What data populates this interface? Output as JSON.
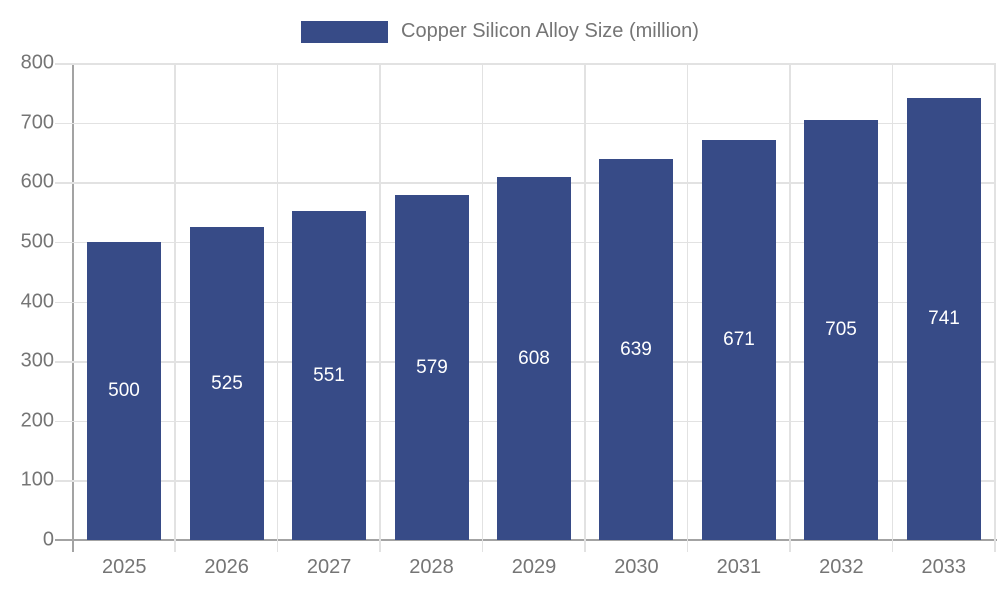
{
  "chart_data": {
    "type": "bar",
    "title": "",
    "legend_label": "Copper Silicon Alloy Size (million)",
    "legend_position": "top-center",
    "categories": [
      "2025",
      "2026",
      "2027",
      "2028",
      "2029",
      "2030",
      "2031",
      "2032",
      "2033"
    ],
    "series": [
      {
        "name": "Copper Silicon Alloy Size (million)",
        "values": [
          500,
          525,
          551,
          579,
          608,
          639,
          671,
          705,
          741
        ]
      }
    ],
    "bar_value_labels": [
      "500",
      "525",
      "551",
      "579",
      "608",
      "639",
      "671",
      "705",
      "741"
    ],
    "xlabel": "",
    "ylabel": "",
    "ylim": [
      0,
      800
    ],
    "ytick_step": 100,
    "ytick_labels": [
      "0",
      "100",
      "200",
      "300",
      "400",
      "500",
      "600",
      "700",
      "800"
    ],
    "grid": true,
    "colors": {
      "bar_fill": "#374b87",
      "bar_value_text": "#ffffff",
      "grid_line": "#e2e2e2",
      "axis_line": "#a3a3a3",
      "tick_label_text": "#757575",
      "legend_text": "#757575",
      "background": "#ffffff"
    }
  }
}
